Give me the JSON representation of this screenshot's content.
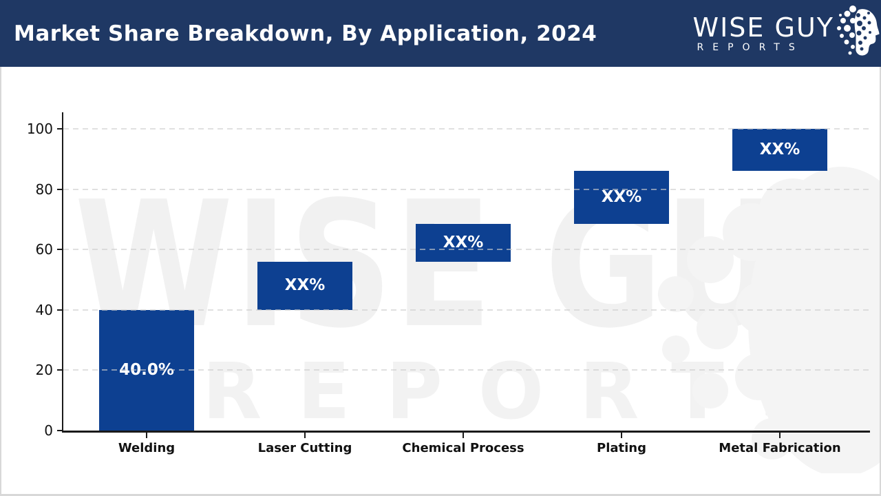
{
  "header": {
    "title": "Market Share Breakdown, By Application, 2024",
    "logo": {
      "line1": "WISE GUY",
      "line2": "REPORTS",
      "icon": "head-profile-dots"
    }
  },
  "watermark": {
    "line1": "WISE GUY",
    "line2": "REPORTS"
  },
  "colors": {
    "header_bg": "#1f3864",
    "bar": "#0d4091",
    "grid": "#d9d9d9",
    "axis": "#1a1a1a",
    "watermark": "#f1f1f1",
    "bar_label": "#ffffff",
    "tick_label": "#111111"
  },
  "chart_data": {
    "type": "bar",
    "subtype": "waterfall",
    "title": "Market Share Breakdown, By Application, 2024",
    "categories": [
      "Welding",
      "Laser Cutting",
      "Chemical Process",
      "Plating",
      "Metal Fabrication"
    ],
    "series": [
      {
        "name": "Market Share (%)",
        "segments": [
          {
            "category": "Welding",
            "start": 0,
            "end": 40,
            "label": "40.0%"
          },
          {
            "category": "Laser Cutting",
            "start": 40,
            "end": 56,
            "label": "XX%"
          },
          {
            "category": "Chemical Process",
            "start": 56,
            "end": 68.5,
            "label": "XX%"
          },
          {
            "category": "Plating",
            "start": 68.5,
            "end": 86,
            "label": "XX%"
          },
          {
            "category": "Metal Fabrication",
            "start": 86,
            "end": 100,
            "label": "XX%"
          }
        ]
      }
    ],
    "xlabel": "",
    "ylabel": "",
    "yticks": [
      0,
      20,
      40,
      60,
      80,
      100
    ],
    "ylim": [
      0,
      106
    ],
    "grid": "dashed-horizontal",
    "legend": "none"
  }
}
